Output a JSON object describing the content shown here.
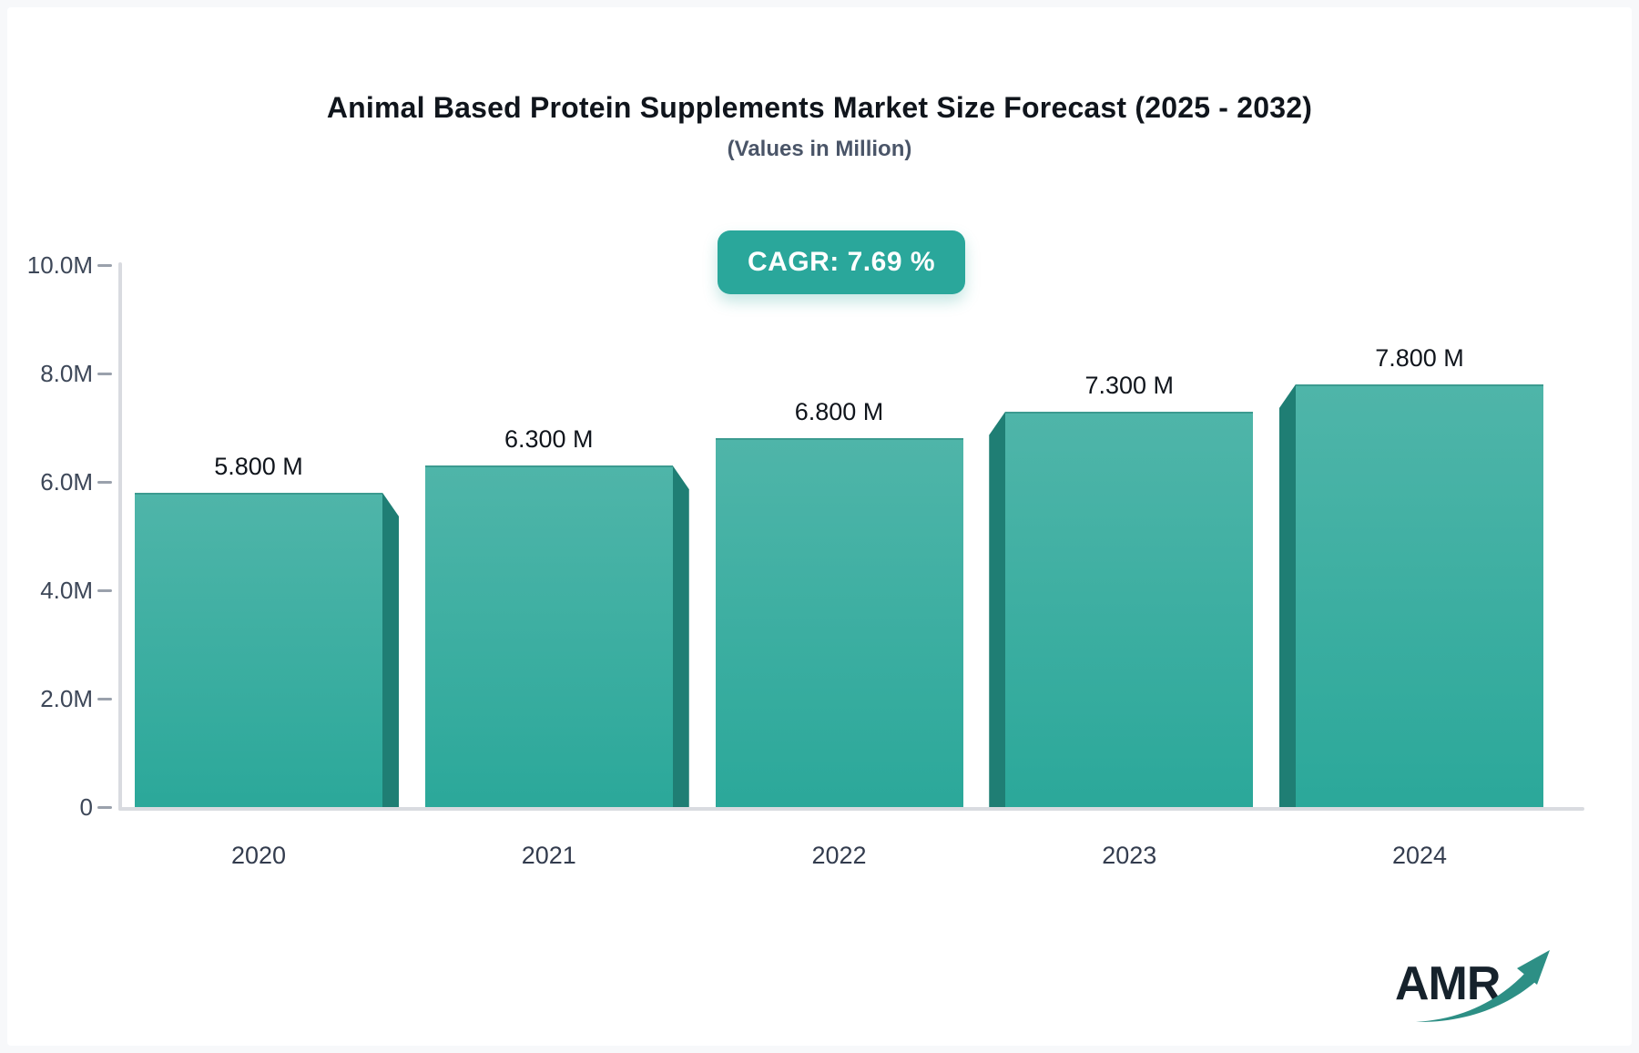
{
  "title": "Animal Based Protein Supplements Market Size Forecast (2025 - 2032)",
  "subtitle": "(Values in Million)",
  "cagr_badge": {
    "label": "CAGR: 7.69 %"
  },
  "logo": {
    "text": "AMR",
    "arrow_icon": "trend-up-arrow"
  },
  "colors": {
    "page_bg": "#f7f8fa",
    "card_bg": "#ffffff",
    "title_text": "#10151c",
    "subtitle_text": "#4a5568",
    "badge_bg": "#2aa79b",
    "badge_text": "#ffffff",
    "bar_top": "#4fb5a9",
    "bar_bottom": "#2ba89a",
    "bar_bevel": "#1f7e74",
    "axis_line": "#d9dbe0",
    "tick": "#9aa1ac",
    "axis_text": "#3d4758",
    "xlabel_text": "#333c4e",
    "value_text": "#10151c",
    "logo_text": "#16222c",
    "logo_arrow": "#2d8f85"
  },
  "chart_data": {
    "type": "bar",
    "title": "Animal Based Protein Supplements Market Size Forecast (2025 - 2032)",
    "subtitle": "(Values in Million)",
    "unit": "Million",
    "categories": [
      "2020",
      "2021",
      "2022",
      "2023",
      "2024"
    ],
    "values": [
      5.8,
      6.3,
      6.8,
      7.3,
      7.8
    ],
    "value_labels": [
      "5.800 M",
      "6.300 M",
      "6.800 M",
      "7.300 M",
      "7.800 M"
    ],
    "cagr_label": "CAGR: 7.69 %",
    "ylim": [
      0,
      10
    ],
    "yticks": [
      {
        "value": 10,
        "label": "10.0M"
      },
      {
        "value": 8,
        "label": "8.0M"
      },
      {
        "value": 6,
        "label": "6.0M"
      },
      {
        "value": 4,
        "label": "4.0M"
      },
      {
        "value": 2,
        "label": "2.0M"
      },
      {
        "value": 0,
        "label": "0"
      }
    ],
    "grid": false,
    "legend": "none"
  }
}
